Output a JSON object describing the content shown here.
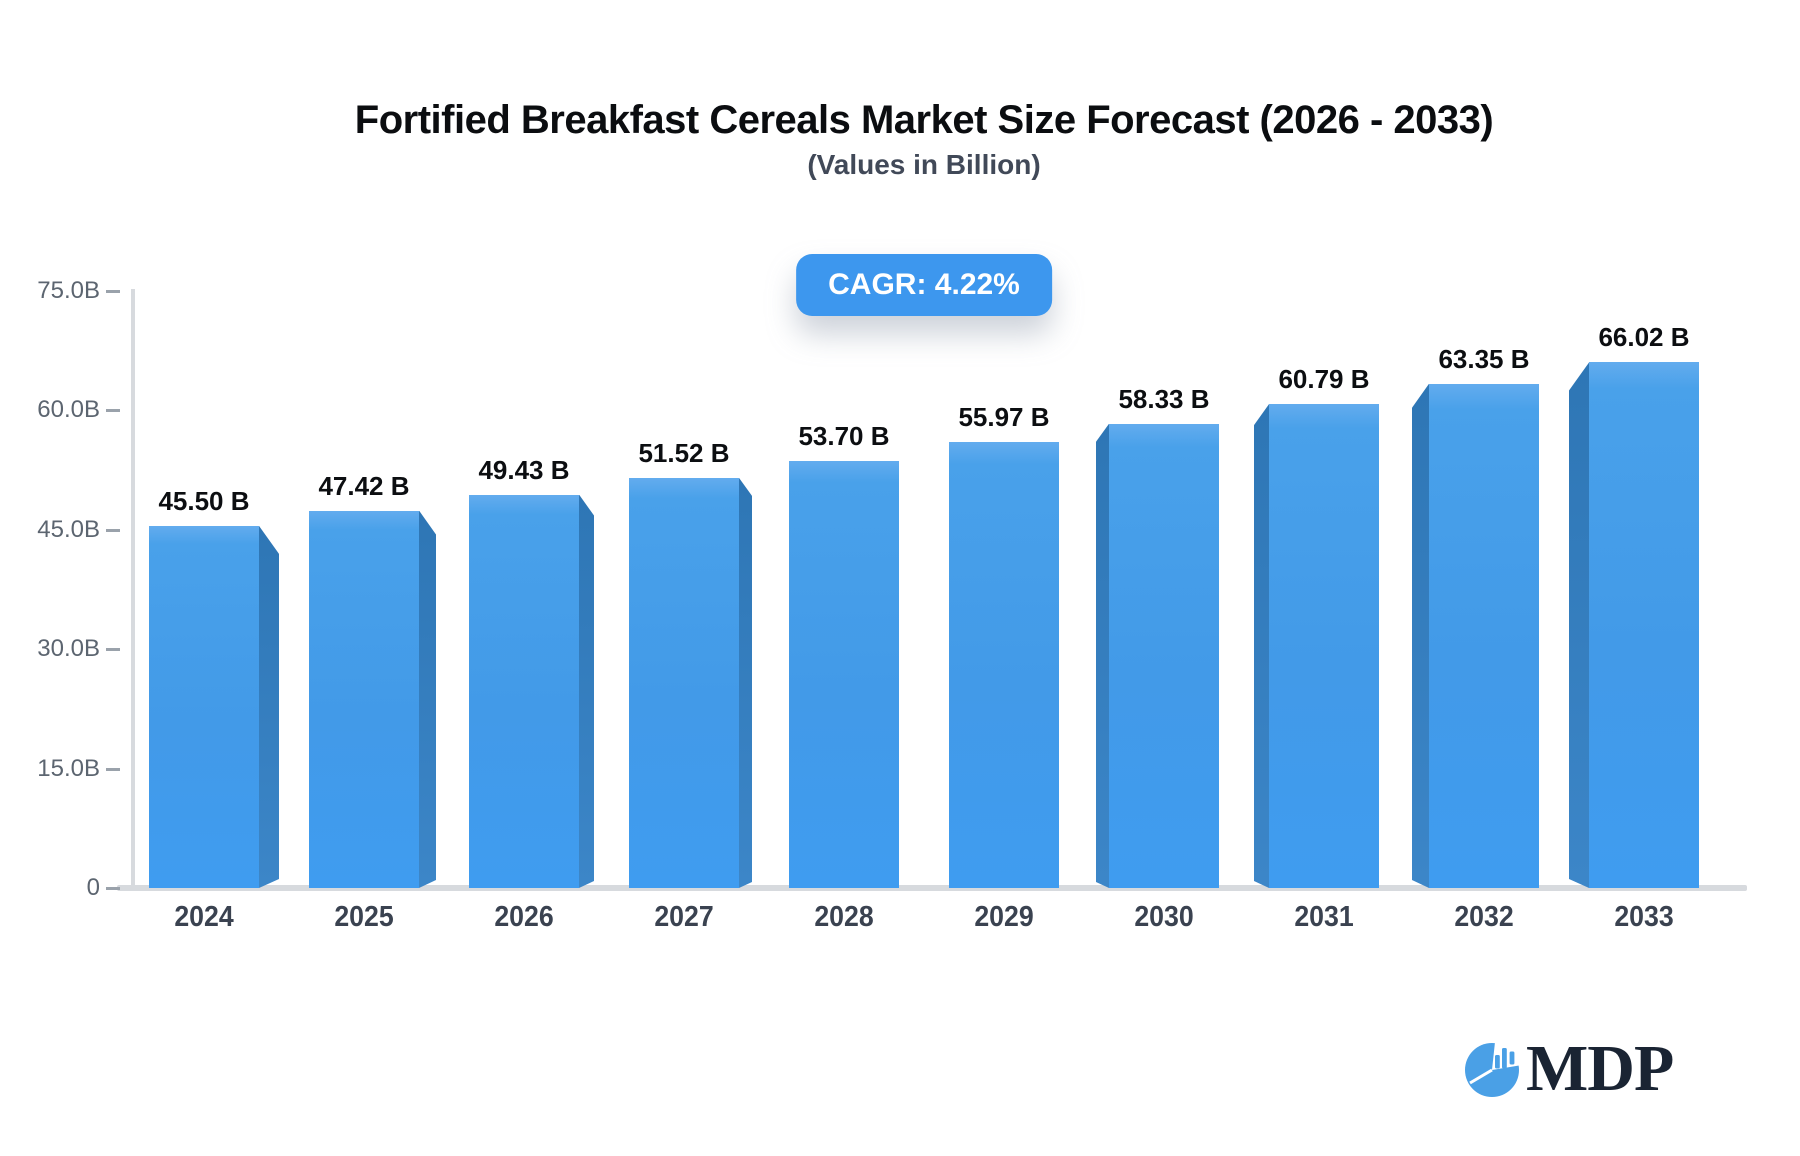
{
  "header": {
    "title": "Fortified Breakfast Cereals Market Size Forecast (2026 - 2033)",
    "subtitle": "(Values in Billion)",
    "cagr_label": "CAGR: 4.22%"
  },
  "chart_data": {
    "type": "bar",
    "title": "Fortified Breakfast Cereals Market Size Forecast (2026 - 2033)",
    "subtitle": "(Values in Billion)",
    "annotation": "CAGR: 4.22%",
    "categories": [
      "2024",
      "2025",
      "2026",
      "2027",
      "2028",
      "2029",
      "2030",
      "2031",
      "2032",
      "2033"
    ],
    "values": [
      45.5,
      47.42,
      49.43,
      51.52,
      53.7,
      55.97,
      58.33,
      60.79,
      63.35,
      66.02
    ],
    "value_labels": [
      "45.50 B",
      "47.42 B",
      "49.43 B",
      "51.52 B",
      "53.70 B",
      "55.97 B",
      "58.33 B",
      "60.79 B",
      "63.35 B",
      "66.02 B"
    ],
    "y_ticks": [
      {
        "label": "75.0B",
        "value": 75
      },
      {
        "label": "60.0B",
        "value": 60
      },
      {
        "label": "45.0B",
        "value": 45
      },
      {
        "label": "30.0B",
        "value": 30
      },
      {
        "label": "15.0B",
        "value": 15
      },
      {
        "label": "0",
        "value": 0
      }
    ],
    "ylim": [
      0,
      75
    ],
    "grid": false,
    "legend": false,
    "colors": {
      "bar_face": "#429ae8",
      "bar_face_highlight": "#63acee",
      "bar_side": "#2e76b5",
      "axis_line": "#d7dade",
      "tick": "#9aa2ab",
      "y_label": "#5c6570",
      "x_label": "#3a4250",
      "value_label": "#0c0e11",
      "badge_bg": "#3d97ee",
      "badge_text": "#ffffff",
      "logo_blue": "#4aa0e6",
      "logo_navy": "#1a2433"
    }
  },
  "footer": {
    "logo_text": "MDP"
  }
}
